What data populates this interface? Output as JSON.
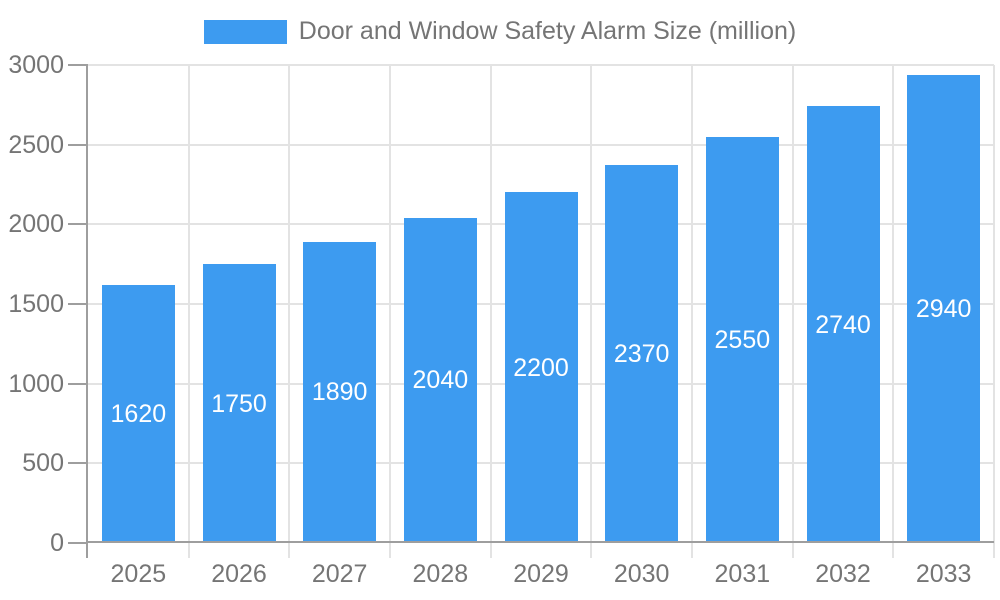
{
  "legend": {
    "label": "Door and Window Safety Alarm Size (million)"
  },
  "chart_data": {
    "type": "bar",
    "title": "Door and Window Safety Alarm Size (million)",
    "categories": [
      "2025",
      "2026",
      "2027",
      "2028",
      "2029",
      "2030",
      "2031",
      "2032",
      "2033"
    ],
    "values": [
      1620,
      1750,
      1890,
      2040,
      2200,
      2370,
      2550,
      2740,
      2940
    ],
    "series": [
      {
        "name": "Door and Window Safety Alarm Size (million)",
        "values": [
          1620,
          1750,
          1890,
          2040,
          2200,
          2370,
          2550,
          2740,
          2940
        ]
      }
    ],
    "xlabel": "",
    "ylabel": "",
    "ylim": [
      0,
      3000
    ],
    "yticks": [
      0,
      500,
      1000,
      1500,
      2000,
      2500,
      3000
    ],
    "grid": true,
    "legend_position": "top-center",
    "bar_labels_inside": true,
    "colors": {
      "bar": "#3D9BF0",
      "bar_label": "#FFFFFF",
      "axis": "#9E9E9E",
      "gridline": "#E3E3E3",
      "text": "#757575",
      "background": "#FFFFFF"
    }
  }
}
